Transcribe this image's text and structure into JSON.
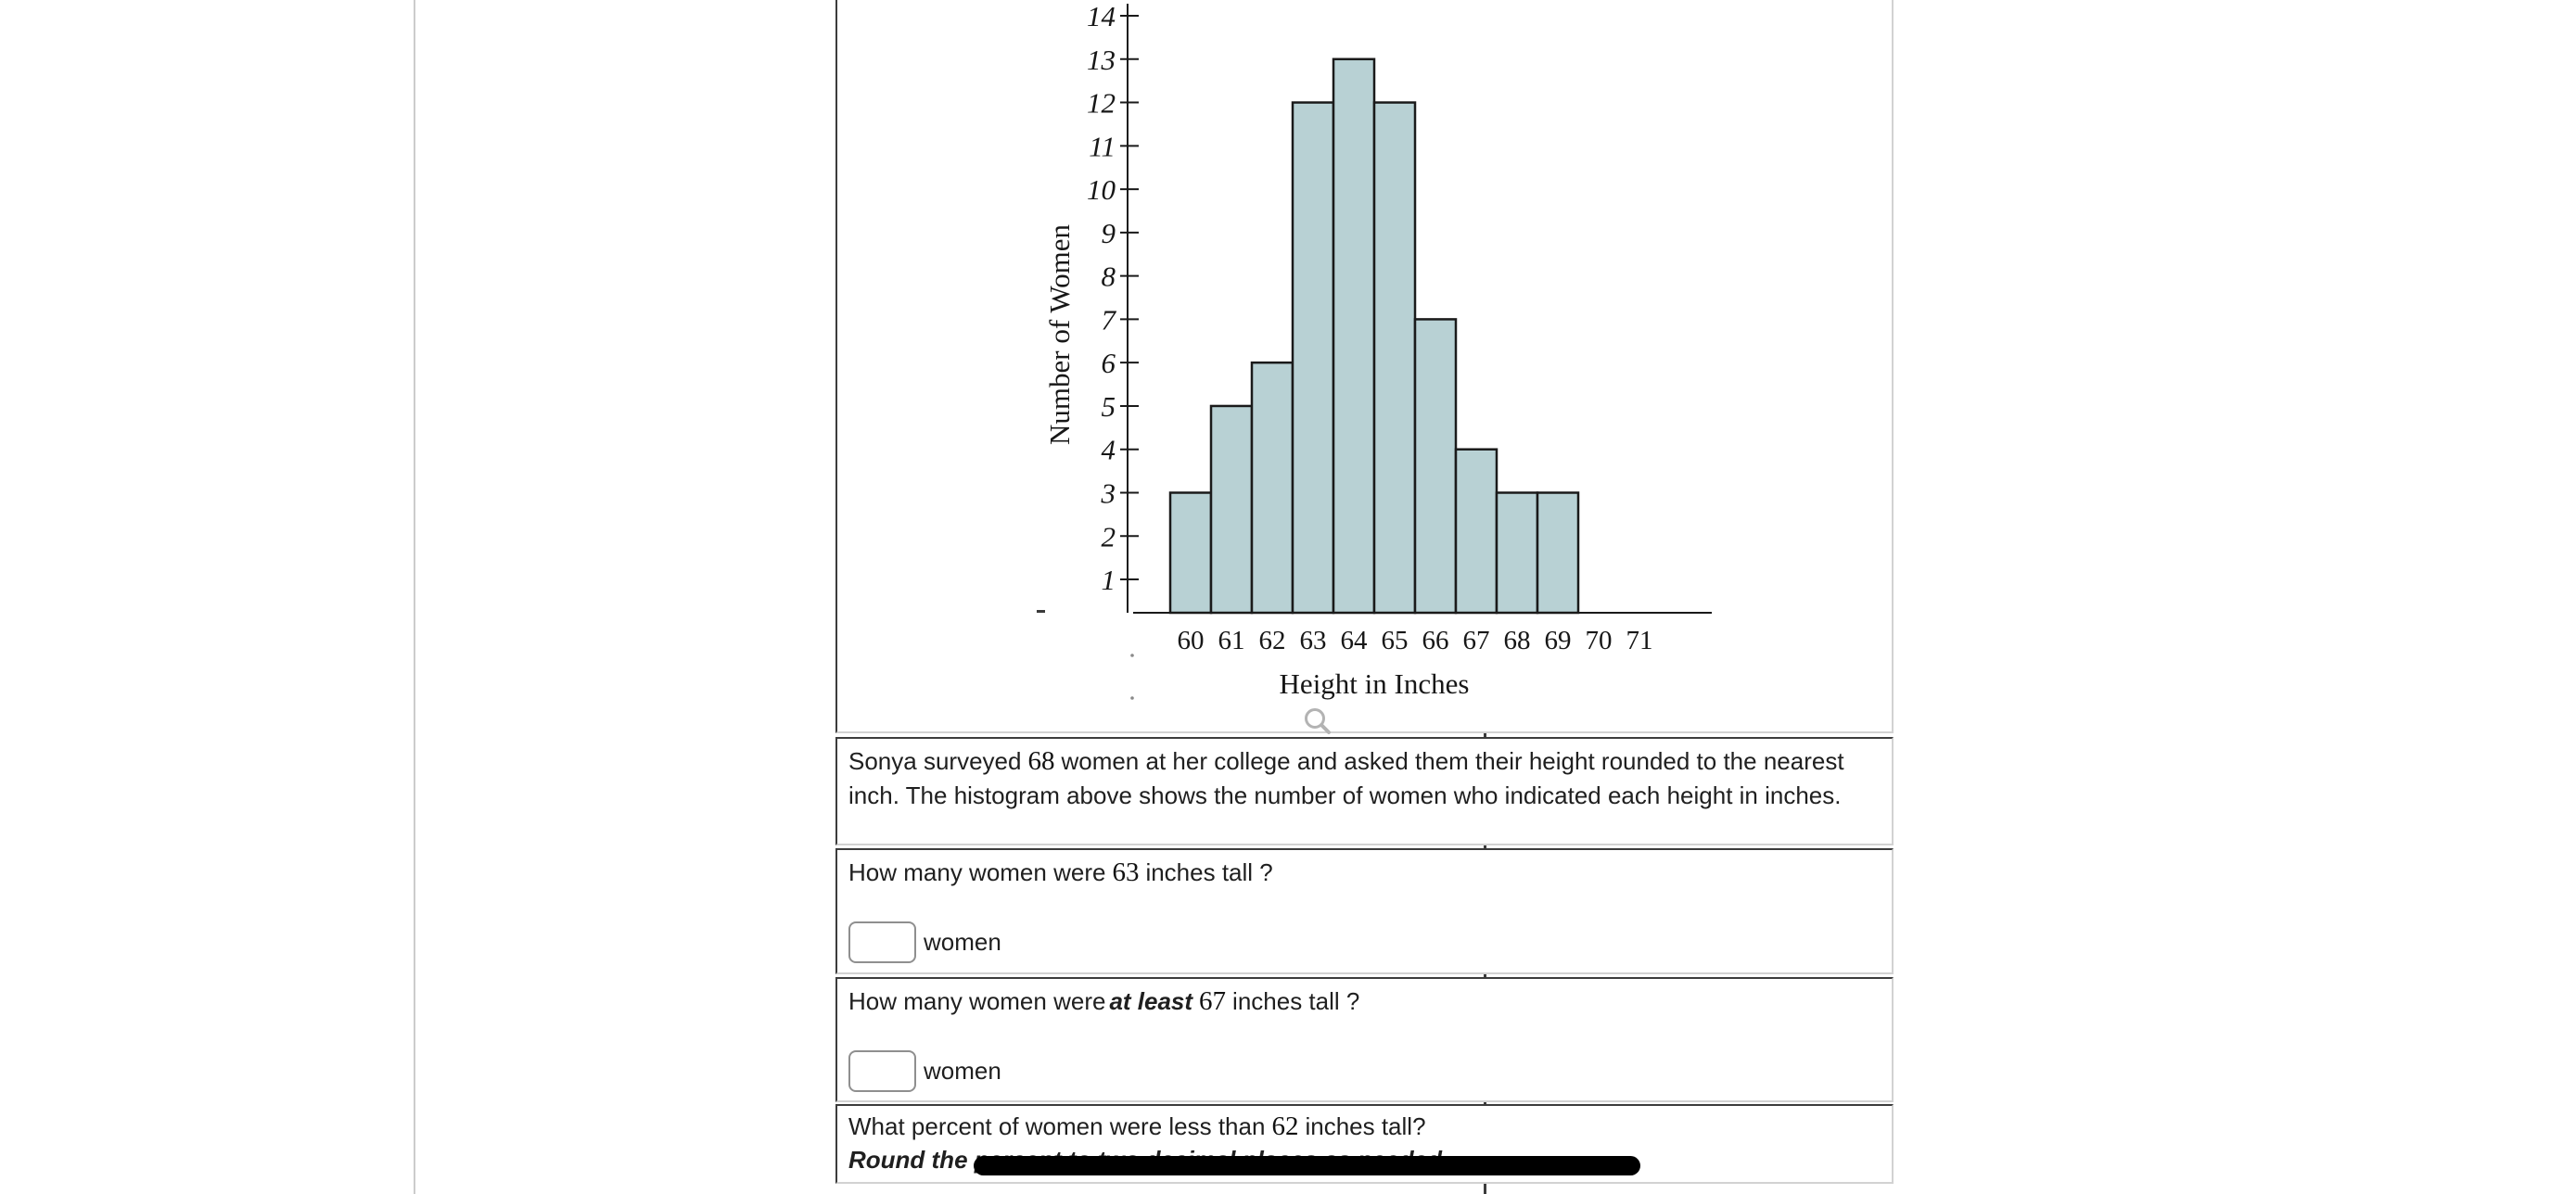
{
  "chart_data": {
    "type": "bar",
    "title": "",
    "categories": [
      60,
      61,
      62,
      63,
      64,
      65,
      66,
      67,
      68,
      69,
      70,
      71
    ],
    "values": [
      3,
      5,
      6,
      12,
      13,
      12,
      7,
      4,
      3,
      3,
      0,
      0
    ],
    "xlabel": "Height in Inches",
    "ylabel": "Number of Women",
    "ylim": [
      0,
      14
    ],
    "yticks": [
      1,
      2,
      3,
      4,
      5,
      6,
      7,
      8,
      9,
      10,
      11,
      12,
      13,
      14
    ],
    "grid": false,
    "legend": "none",
    "bar_fill": "#b8d1d4",
    "bar_stroke": "#1a1a1a",
    "axis_color": "#1a1a1a"
  },
  "icons": {
    "zoom": "magnifier-icon"
  },
  "colors": {
    "panel_border_dark": "#3c3c3c",
    "panel_border_light": "#d2d2d2",
    "redaction": "#000000",
    "magnifier": "#b3b3b3"
  },
  "intro": {
    "pre": "Sonya surveyed",
    "num": "68",
    "post": "women at her college and asked them their height rounded to the nearest inch. The histogram above shows the number of women who indicated each height in inches."
  },
  "q1": {
    "pre": "How many women were",
    "num": "63",
    "post": "inches tall ?",
    "input_value": "",
    "unit_label": "women"
  },
  "q2": {
    "pre": "How many women were",
    "emph": "at least",
    "num": "67",
    "post": "inches tall ?",
    "input_value": "",
    "unit_label": "women"
  },
  "q3": {
    "line1_pre": "What percent of women were less than",
    "num": "62",
    "line1_post": "inches tall?",
    "line2": "Round the percent to two decimal places as needed."
  }
}
